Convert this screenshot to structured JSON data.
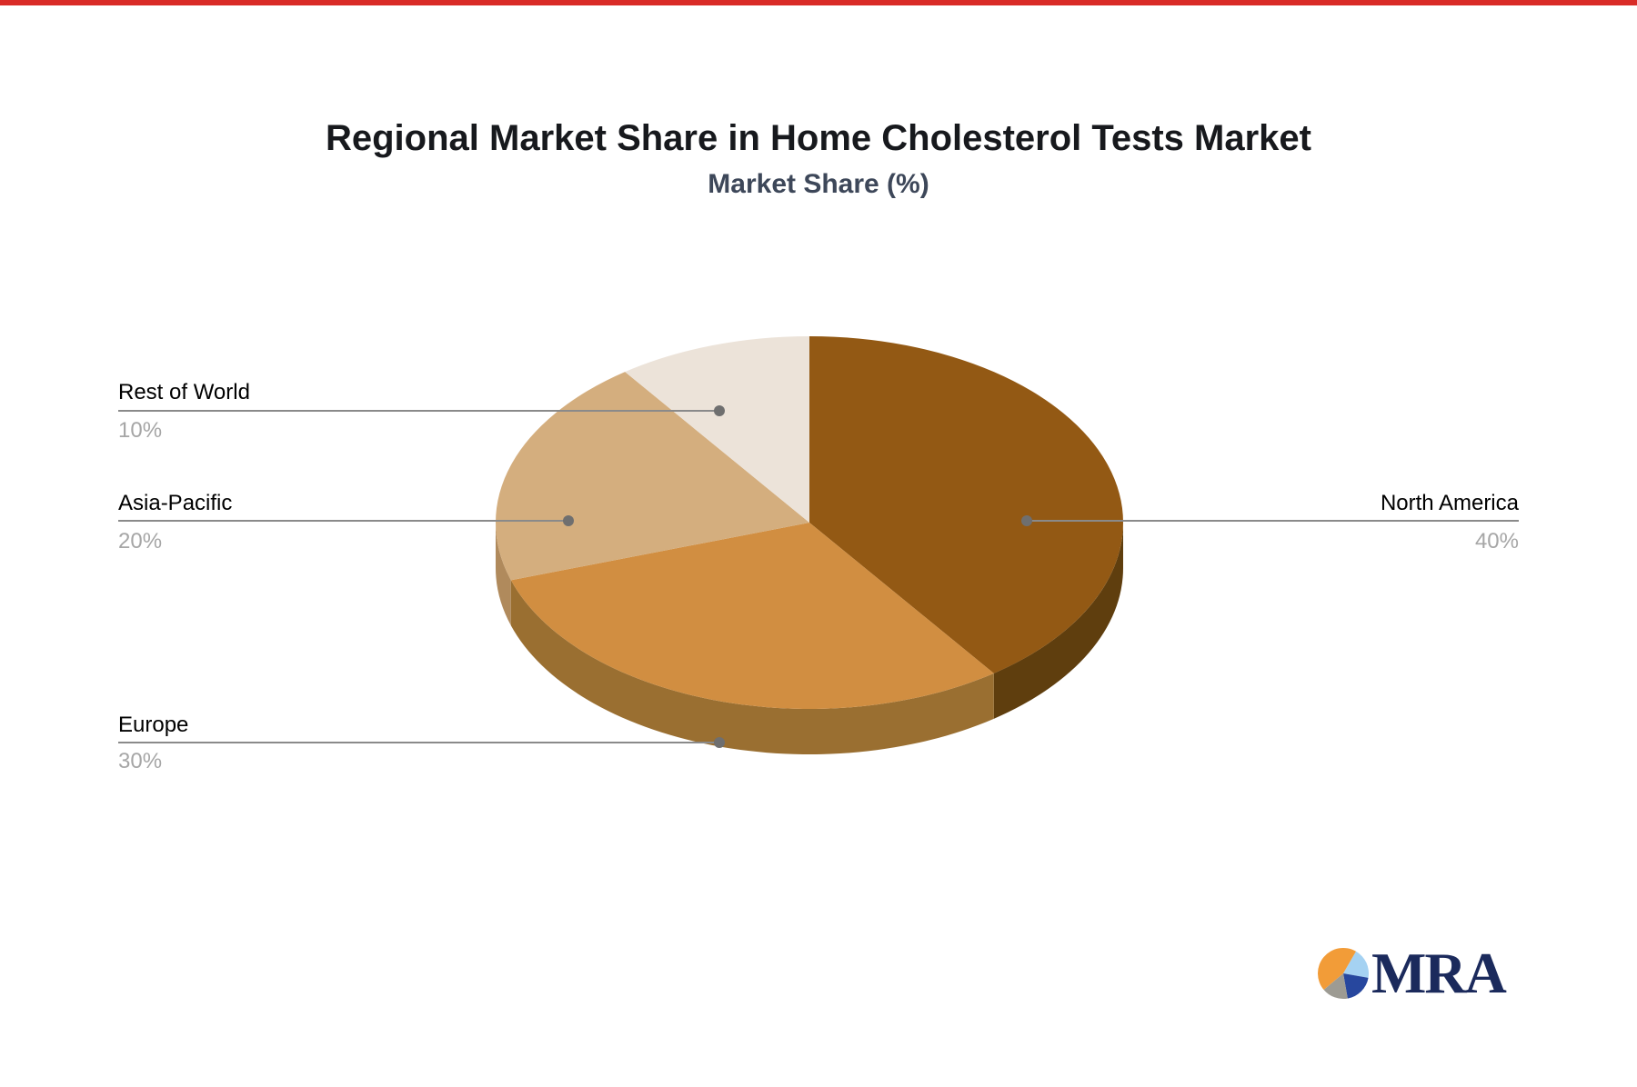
{
  "page": {
    "top_bar_color": "#d92b27",
    "background_color": "#ffffff"
  },
  "chart": {
    "title": "Regional Market Share in Home Cholesterol Tests Market",
    "subtitle": "Market Share (%)",
    "title_color": "#17191d",
    "subtitle_color": "#3d4759"
  },
  "chart_data": {
    "type": "pie",
    "style": "3d",
    "title": "Regional Market Share in Home Cholesterol Tests Market",
    "subtitle": "Market Share (%)",
    "unit": "%",
    "direction": "clockwise",
    "start_angle_deg": 0,
    "legend": "none",
    "slices": [
      {
        "label": "North America",
        "value": 40,
        "display": "40%",
        "color": "#935914",
        "side_color": "#5f3e0e"
      },
      {
        "label": "Europe",
        "value": 30,
        "display": "30%",
        "color": "#d18e41",
        "side_color": "#9a6f31"
      },
      {
        "label": "Asia-Pacific",
        "value": 20,
        "display": "20%",
        "color": "#d4ae7e",
        "side_color": "#b08a5c"
      },
      {
        "label": "Rest of World",
        "value": 10,
        "display": "10%",
        "color": "#ece3d9",
        "side_color": "#c9b89f"
      }
    ],
    "label_color": "#000000",
    "value_color": "#a6a6a6",
    "leader_line_color": "#8a8a8a",
    "leader_dot_color": "#6f6f6f"
  },
  "logo": {
    "text": "MRA",
    "text_color": "#1b2a5c",
    "icon": "pie-chart-icon",
    "pie_colors": {
      "orange": "#f29c38",
      "light_blue": "#a5d2f2",
      "dark_blue": "#27479e",
      "gray": "#9d9b93"
    }
  }
}
